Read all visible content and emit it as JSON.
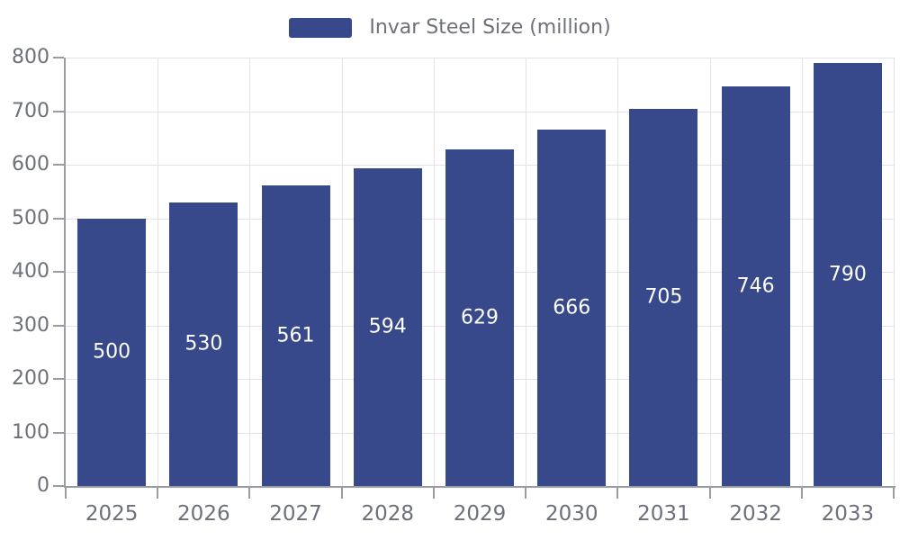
{
  "legend": {
    "label": "Invar Steel Size (million)"
  },
  "colors": {
    "bar": "#37498a",
    "grid": "#e0e3ea",
    "axis": "#999ca3",
    "text": "#6e7079",
    "bar_label": "#ffffff",
    "background": "#ffffff"
  },
  "chart_data": {
    "type": "bar",
    "title": "",
    "categories": [
      "2025",
      "2026",
      "2027",
      "2028",
      "2029",
      "2030",
      "2031",
      "2032",
      "2033"
    ],
    "series": [
      {
        "name": "Invar Steel Size (million)",
        "values": [
          500,
          530,
          561,
          594,
          629,
          666,
          705,
          746,
          790
        ]
      }
    ],
    "xlabel": "",
    "ylabel": "",
    "ylim": [
      0,
      800
    ],
    "ytick_step": 100,
    "grid": true,
    "legend_position": "top",
    "bar_value_labels": true
  }
}
